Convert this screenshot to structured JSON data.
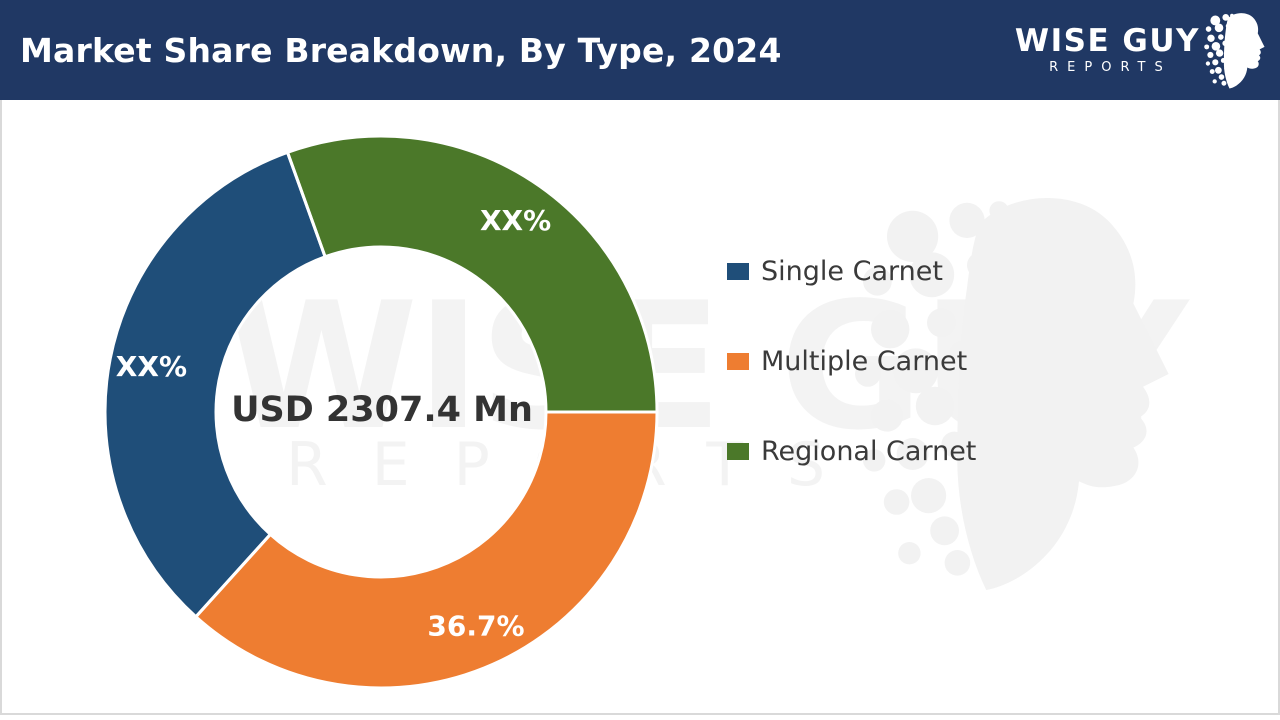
{
  "header": {
    "title": "Market Share Breakdown, By Type, 2024",
    "background_color": "#203864",
    "text_color": "#FFFFFF"
  },
  "brand": {
    "line1": "WISE GUY",
    "line2": "REPORTS"
  },
  "watermark": {
    "line1": "WISE GUY",
    "line2": "REPORTS"
  },
  "chart_data": {
    "type": "pie",
    "subtype": "donut",
    "title": "Market Share Breakdown, By Type, 2024",
    "center_label": "USD 2307.4 Mn",
    "legend_position": "right",
    "start_angle_deg": 0,
    "counterclockwise": true,
    "draw_order": [
      "Regional Carnet",
      "Single Carnet",
      "Multiple Carnet"
    ],
    "segments": [
      {
        "name": "Single Carnet",
        "value_pct": 32.8,
        "display_label": "XX%",
        "color": "#1F4E79"
      },
      {
        "name": "Multiple Carnet",
        "value_pct": 36.7,
        "display_label": "36.7%",
        "color": "#EE7D31"
      },
      {
        "name": "Regional Carnet",
        "value_pct": 30.5,
        "display_label": "XX%",
        "color": "#4B7829"
      }
    ],
    "slice_label_color": "#FFFFFF",
    "separator_color": "#FFFFFF"
  }
}
